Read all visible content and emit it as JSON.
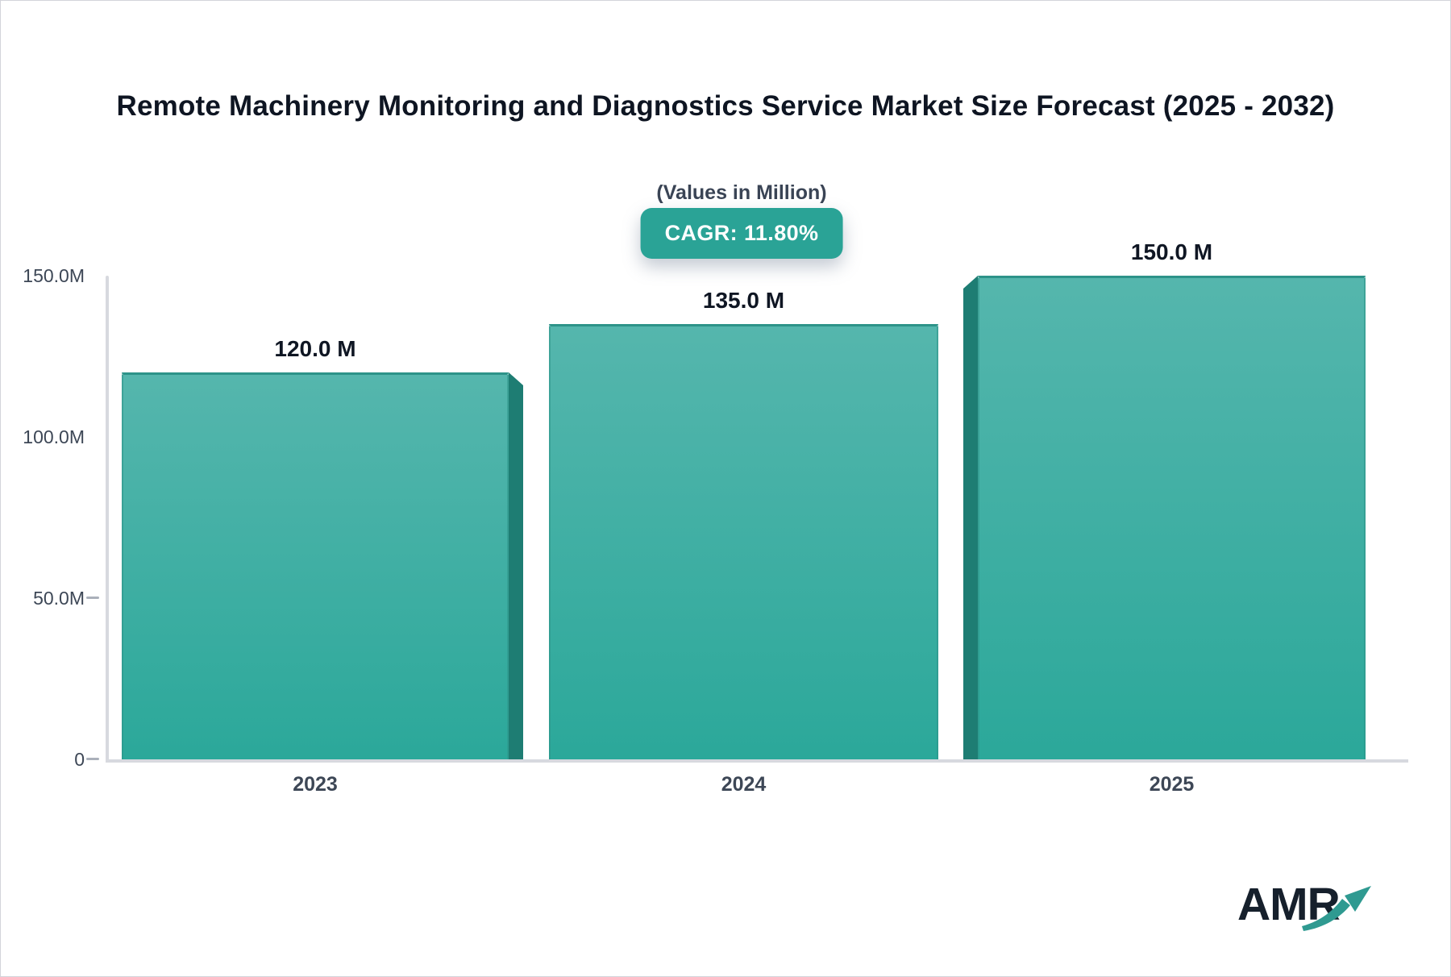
{
  "header": {
    "title": "Remote Machinery Monitoring and Diagnostics Service Market Size Forecast (2025 - 2032)",
    "subtitle": "(Values in Million)",
    "cagr_badge": "CAGR: 11.80%"
  },
  "logo": {
    "text": "AMR",
    "icon": "trend-arrow-icon"
  },
  "colors": {
    "accent_teal": "#2aa396",
    "bar_gradient_top": "#55b6ad",
    "bar_gradient_bottom": "#2ba89a",
    "bar_side_3d": "#1e7d73",
    "axis_line": "#d7d9df",
    "text_dark": "#0e1522",
    "text_slate": "#3d4756",
    "logo_arrow": "#2f9a91"
  },
  "chart_data": {
    "type": "bar",
    "title": "Remote Machinery Monitoring and Diagnostics Service Market Size Forecast (2025 - 2032)",
    "subtitle": "(Values in Million)",
    "unit": "Million",
    "cagr_percent": 11.8,
    "categories": [
      "2023",
      "2024",
      "2025"
    ],
    "values": [
      120.0,
      135.0,
      150.0
    ],
    "value_labels": [
      "120.0 M",
      "135.0 M",
      "150.0 M"
    ],
    "ylim": [
      0,
      150
    ],
    "yticks": [
      {
        "label": "150.0M",
        "value": 150,
        "dash": false
      },
      {
        "label": "100.0M",
        "value": 100,
        "dash": false
      },
      {
        "label": "50.0M",
        "value": 50,
        "dash": true
      },
      {
        "label": "0",
        "value": 0,
        "dash": true
      }
    ],
    "grid": false,
    "legend": false,
    "bar_style": "3d-teal-gradient"
  }
}
